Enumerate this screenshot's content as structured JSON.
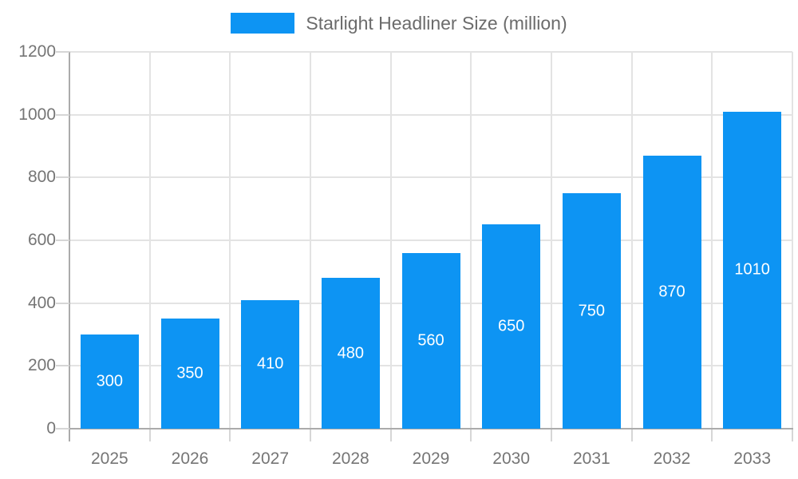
{
  "legend": {
    "label": "Starlight Headliner Size (million)",
    "position": "top"
  },
  "chart_data": {
    "type": "bar",
    "title": "Starlight Headliner Size (million)",
    "categories": [
      "2025",
      "2026",
      "2027",
      "2028",
      "2029",
      "2030",
      "2031",
      "2032",
      "2033"
    ],
    "series": [
      {
        "name": "Starlight Headliner Size (million)",
        "values": [
          300,
          350,
          410,
          480,
          560,
          650,
          750,
          870,
          1010
        ]
      }
    ],
    "bar_value_labels": [
      "300",
      "350",
      "410",
      "480",
      "560",
      "650",
      "750",
      "870",
      "1010"
    ],
    "xlabel": "",
    "ylabel": "",
    "ylim": [
      0,
      1200
    ],
    "yticks": [
      0,
      200,
      400,
      600,
      800,
      1000,
      1200
    ],
    "grid": true,
    "legend_position": "top",
    "colors": {
      "bar": "#0D94F3",
      "grid": "#E3E3E3",
      "axis": "#ABABAB",
      "tick": "#D6D6D6",
      "tick_label": "#757575",
      "legend_text": "#6B6B6B",
      "bar_label": "#FFFFFF",
      "background": "#FFFFFF"
    }
  }
}
